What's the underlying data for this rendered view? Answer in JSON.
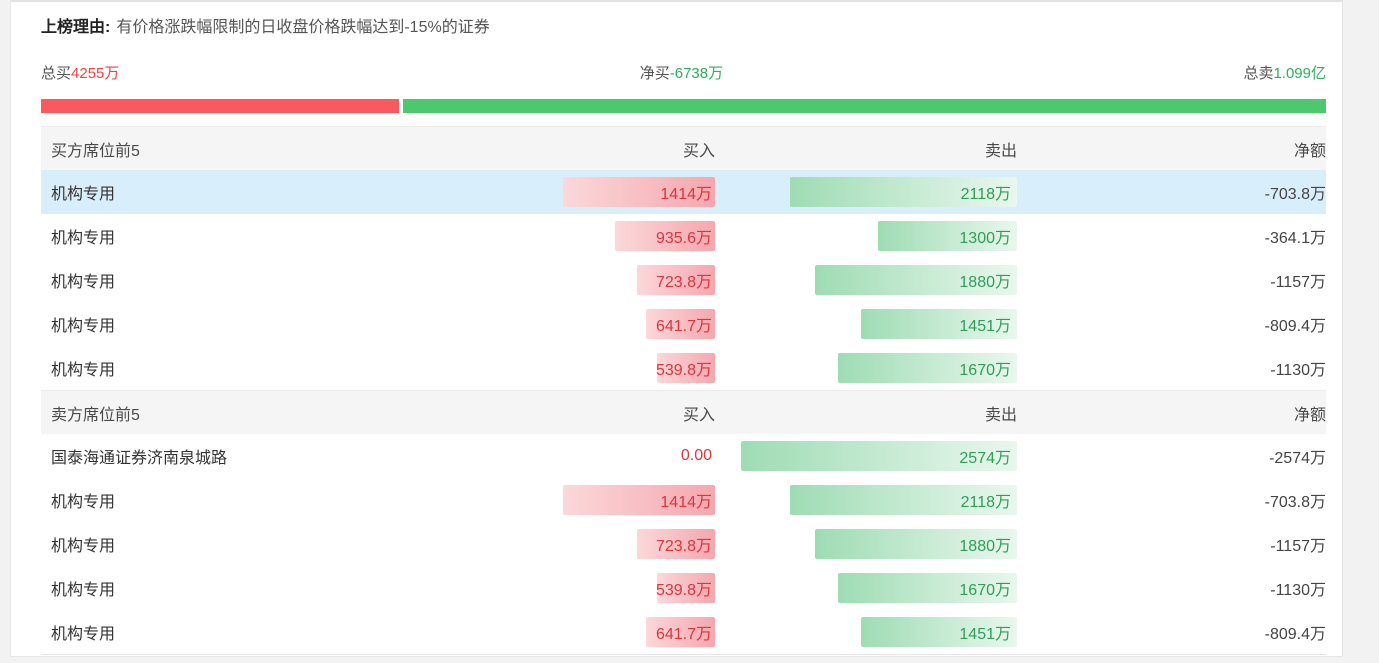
{
  "reason": {
    "label": "上榜理由:",
    "text": "有价格涨跌幅限制的日收盘价格跌幅达到-15%的证券"
  },
  "summary": {
    "buy_label": "总买",
    "buy_value": "4255万",
    "buy_total_wan": 4255,
    "net_label": "净买",
    "net_value": "-6738万",
    "sell_label": "总卖",
    "sell_value": "1.099亿",
    "sell_total_wan": 10990
  },
  "colors": {
    "accent_red": "#ef4444",
    "accent_green": "#2fae5c",
    "progress_red": "#fa5a5f",
    "progress_green": "#4dc86e",
    "row_highlight": "#d9eefb"
  },
  "table": {
    "columns": {
      "buy": "买入",
      "sell": "卖出",
      "net": "净额"
    },
    "sections": [
      {
        "title": "买方席位前5",
        "rows": [
          {
            "name": "机构专用",
            "buy_label": "1414万",
            "buy_wan": 1414,
            "sell_label": "2118万",
            "sell_wan": 2118,
            "net_label": "-703.8万",
            "highlight": true
          },
          {
            "name": "机构专用",
            "buy_label": "935.6万",
            "buy_wan": 935.6,
            "sell_label": "1300万",
            "sell_wan": 1300,
            "net_label": "-364.1万",
            "highlight": false
          },
          {
            "name": "机构专用",
            "buy_label": "723.8万",
            "buy_wan": 723.8,
            "sell_label": "1880万",
            "sell_wan": 1880,
            "net_label": "-1157万",
            "highlight": false
          },
          {
            "name": "机构专用",
            "buy_label": "641.7万",
            "buy_wan": 641.7,
            "sell_label": "1451万",
            "sell_wan": 1451,
            "net_label": "-809.4万",
            "highlight": false
          },
          {
            "name": "机构专用",
            "buy_label": "539.8万",
            "buy_wan": 539.8,
            "sell_label": "1670万",
            "sell_wan": 1670,
            "net_label": "-1130万",
            "highlight": false
          }
        ]
      },
      {
        "title": "卖方席位前5",
        "rows": [
          {
            "name": "国泰海通证券济南泉城路",
            "buy_label": "0.00",
            "buy_wan": 0,
            "sell_label": "2574万",
            "sell_wan": 2574,
            "net_label": "-2574万",
            "highlight": false
          },
          {
            "name": "机构专用",
            "buy_label": "1414万",
            "buy_wan": 1414,
            "sell_label": "2118万",
            "sell_wan": 2118,
            "net_label": "-703.8万",
            "highlight": false
          },
          {
            "name": "机构专用",
            "buy_label": "723.8万",
            "buy_wan": 723.8,
            "sell_label": "1880万",
            "sell_wan": 1880,
            "net_label": "-1157万",
            "highlight": false
          },
          {
            "name": "机构专用",
            "buy_label": "539.8万",
            "buy_wan": 539.8,
            "sell_label": "1670万",
            "sell_wan": 1670,
            "net_label": "-1130万",
            "highlight": false
          },
          {
            "name": "机构专用",
            "buy_label": "641.7万",
            "buy_wan": 641.7,
            "sell_label": "1451万",
            "sell_wan": 1451,
            "net_label": "-809.4万",
            "highlight": false
          }
        ]
      }
    ]
  }
}
